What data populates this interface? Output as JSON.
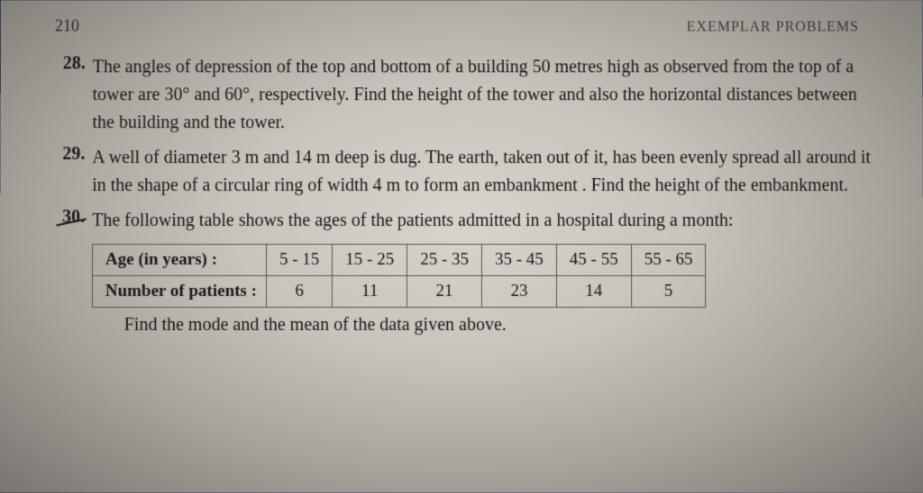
{
  "page_number": "210",
  "section_title": "EXEMPLAR PROBLEMS",
  "problems": {
    "p28": {
      "num": "28.",
      "text": "The angles of depression of the top and bottom of a building 50 metres high as observed from the top of a tower are 30° and 60°, respectively. Find the height of the tower and also the horizontal distances between the building and the tower."
    },
    "p29": {
      "num": "29.",
      "text": "A well of diameter 3 m and 14 m deep is dug. The earth, taken out of it, has been evenly spread all around it in the shape of a circular ring of width 4 m to form an embankment . Find the height of the embankment."
    },
    "p30": {
      "num": "30.",
      "text": "The following table shows the ages of the patients admitted in a hospital during a month:"
    }
  },
  "table": {
    "row1_label": "Age (in years) :",
    "row1": [
      "5 - 15",
      "15 - 25",
      "25 - 35",
      "35 - 45",
      "45 - 55",
      "55 - 65"
    ],
    "row2_label": "Number of patients :",
    "row2": [
      "6",
      "11",
      "21",
      "23",
      "14",
      "5"
    ]
  },
  "final_line": "Find the mode and the mean of the data given above.",
  "colors": {
    "text": "#1a1a1a",
    "border": "#555555"
  }
}
